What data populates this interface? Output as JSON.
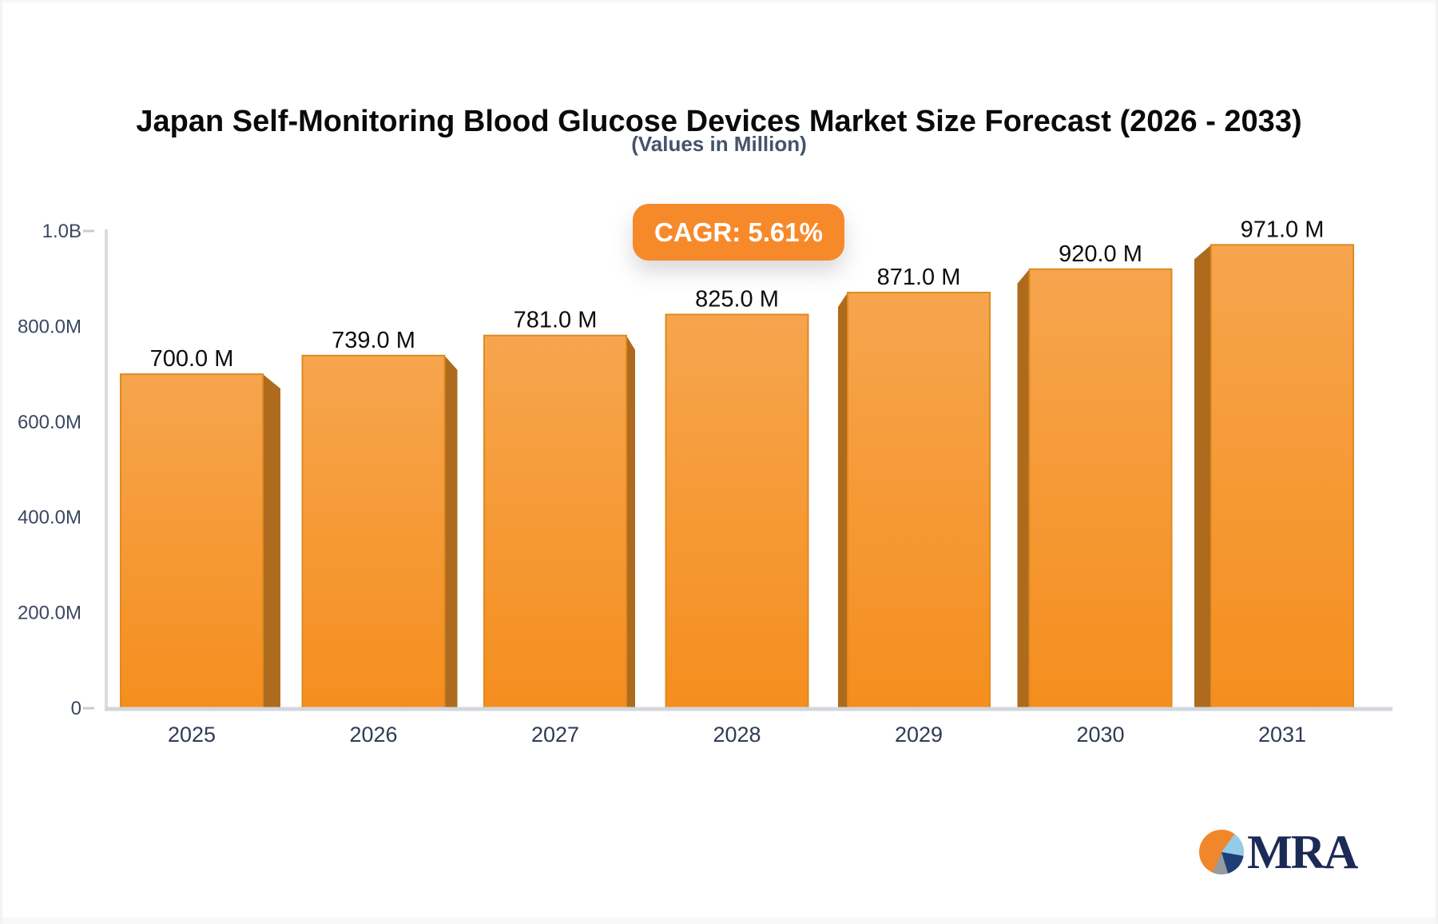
{
  "header": {
    "title": "Japan Self-Monitoring Blood Glucose Devices Market Size Forecast (2026 - 2033)",
    "subtitle": "(Values in Million)"
  },
  "badge": {
    "label": "CAGR: 5.61%",
    "color": "#f68a2b"
  },
  "logo": {
    "text": "MRA",
    "navy": "#1b2b55",
    "orange": "#f0872b",
    "light_blue": "#93cbe9",
    "gray": "#97999e"
  },
  "chart_data": {
    "type": "bar",
    "title": "Japan Self-Monitoring Blood Glucose Devices Market Size Forecast (2026 - 2033)",
    "subtitle": "(Values in Million)",
    "annotation": "CAGR: 5.61%",
    "categories": [
      "2025",
      "2026",
      "2027",
      "2028",
      "2029",
      "2030",
      "2031"
    ],
    "values": [
      700,
      739,
      781,
      825,
      871,
      920,
      971
    ],
    "value_labels": [
      "700.0 M",
      "739.0 M",
      "781.0 M",
      "825.0 M",
      "871.0 M",
      "920.0 M",
      "971.0 M"
    ],
    "yticks": [
      {
        "label": "1.0B",
        "value": 1000
      },
      {
        "label": "800.0M",
        "value": 800
      },
      {
        "label": "600.0M",
        "value": 600
      },
      {
        "label": "400.0M",
        "value": 400
      },
      {
        "label": "200.0M",
        "value": 200
      },
      {
        "label": "0",
        "value": 0
      }
    ],
    "ylim": [
      0,
      1000
    ],
    "grid": false,
    "legend": false,
    "bar_color_top": "#f6a54e",
    "bar_color_bottom": "#f58e1e",
    "bar_side_color": "#ae6b1d",
    "bar_edge_color": "#e08a20",
    "axis_line_color": "#d9dce2",
    "baseline_color": "#d3d7dd",
    "tick_color": "#c7ccd4",
    "tick_label_color": "#3b4860",
    "category_label_color": "#2f3b54",
    "value_label_color": "#0d0d0f"
  }
}
